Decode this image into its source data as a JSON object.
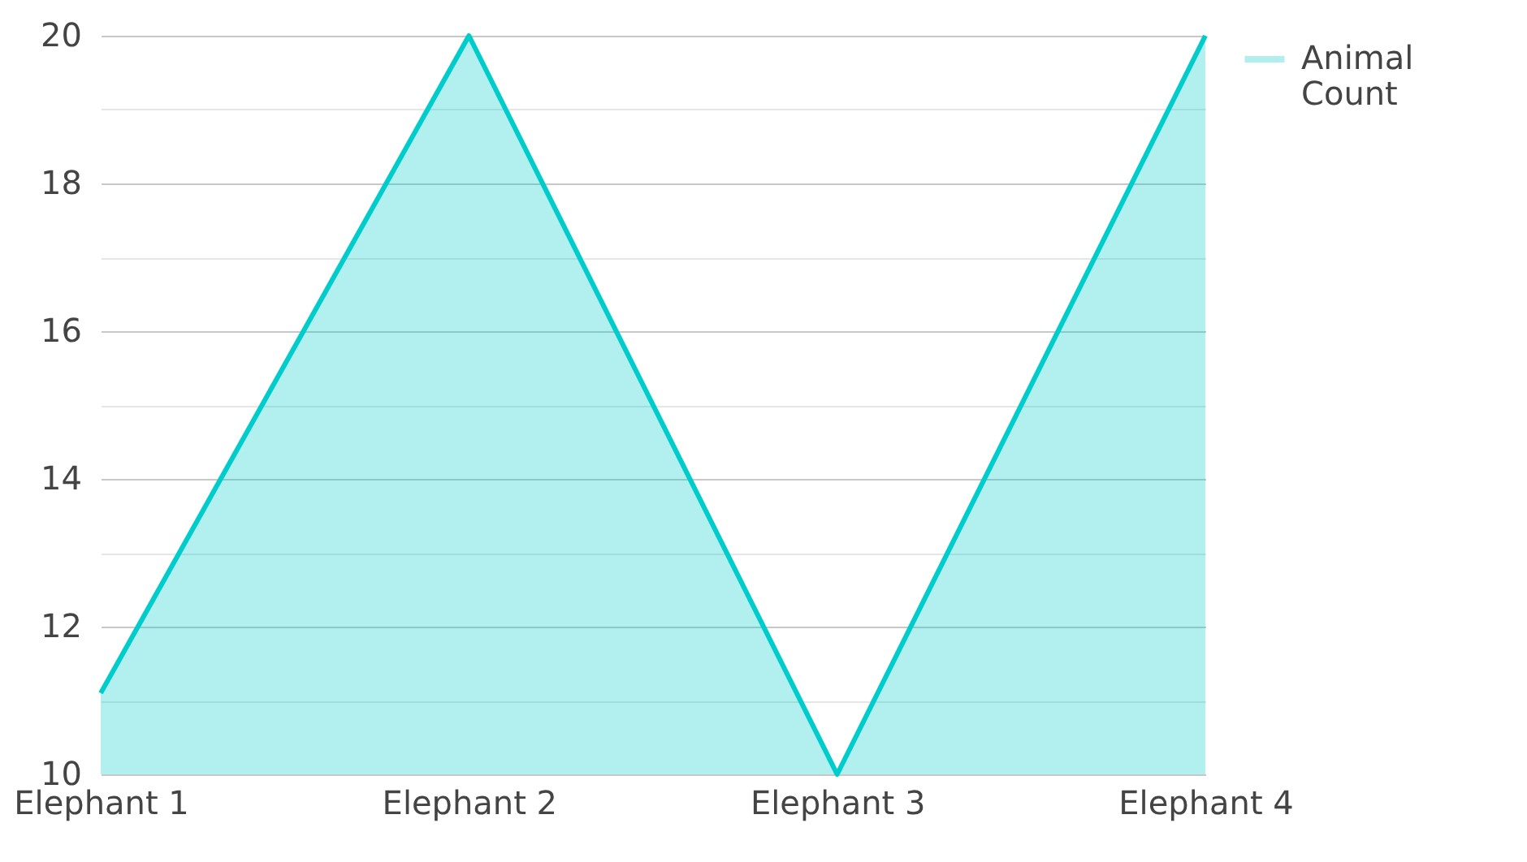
{
  "chart_data": {
    "type": "area",
    "categories": [
      "Elephant 1",
      "Elephant 2",
      "Elephant 3",
      "Elephant 4"
    ],
    "series": [
      {
        "name": "Animal Count",
        "color": "#00cccc",
        "values": [
          11.1,
          20,
          10,
          20
        ]
      }
    ],
    "ylim": [
      10,
      20
    ],
    "yticks": [
      10,
      {
        "value": 11,
        "label": null
      },
      12,
      {
        "value": 13,
        "label": null
      },
      14,
      {
        "value": 15,
        "label": null
      },
      16,
      {
        "value": 17,
        "label": null
      },
      18,
      {
        "value": 19,
        "label": null
      },
      20
    ],
    "grid": "y",
    "legend": "top right"
  }
}
